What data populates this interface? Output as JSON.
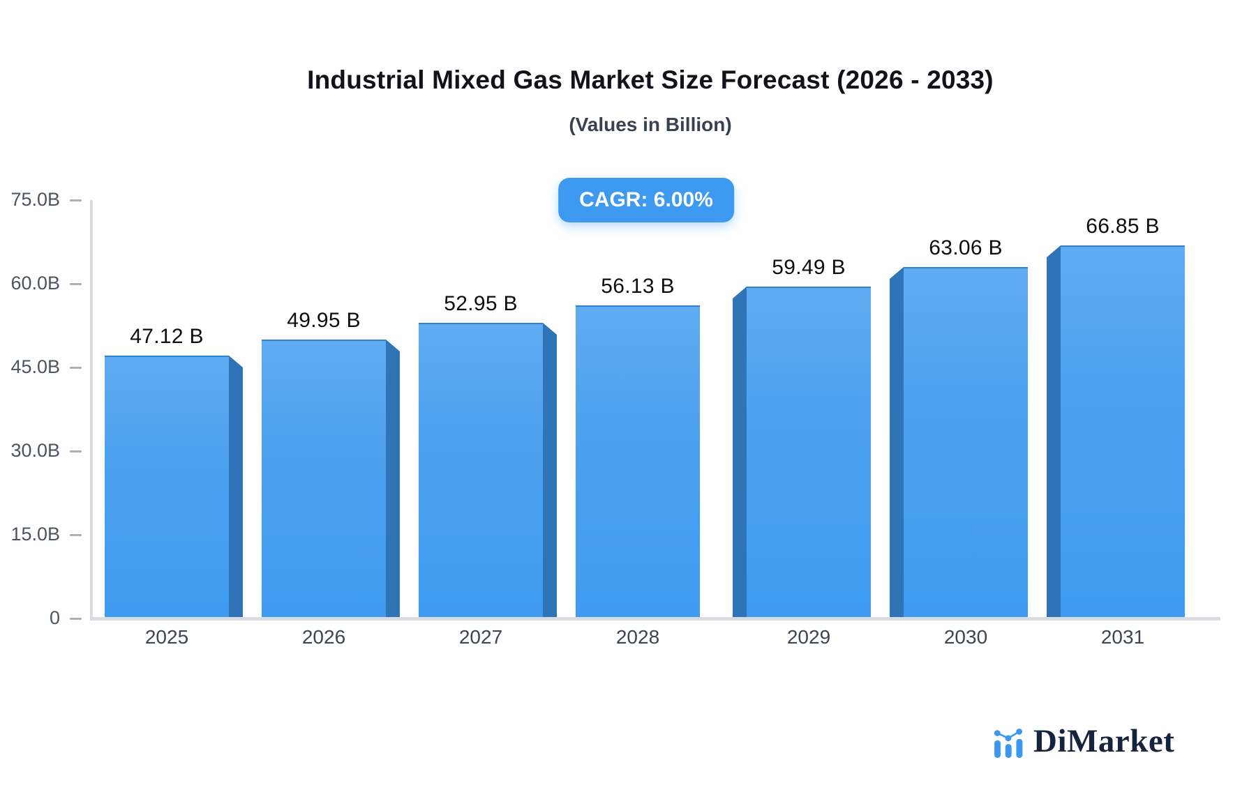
{
  "header": {
    "title": "Industrial Mixed Gas Market Size Forecast (2026 - 2033)",
    "subtitle": "(Values in Billion)",
    "cagr_badge": "CAGR: 6.00%"
  },
  "branding": {
    "name": "DiMarket",
    "icon": "bar-chart-logo-icon"
  },
  "colors": {
    "bar_face_top": "#5fabf2",
    "bar_face_bottom": "#3f9bf0",
    "bar_side": "#2e74b6",
    "badge_bg": "#3e9af0",
    "axis_line": "#d9dce1",
    "tick_text": "#4b545f",
    "logo_text": "#16233e",
    "logo_icon": "#3b97f0"
  },
  "chart_data": {
    "type": "bar",
    "title": "Industrial Mixed Gas Market Size Forecast (2026 - 2033)",
    "subtitle": "(Values in Billion)",
    "annotation": "CAGR: 6.00%",
    "categories": [
      "2025",
      "2026",
      "2027",
      "2028",
      "2029",
      "2030",
      "2031"
    ],
    "values": [
      47.12,
      49.95,
      52.95,
      56.13,
      59.49,
      63.06,
      66.85
    ],
    "value_labels": [
      "47.12 B",
      "49.95 B",
      "52.95 B",
      "56.13 B",
      "59.49 B",
      "63.06 B",
      "66.85 B"
    ],
    "xlabel": "",
    "ylabel": "",
    "ylim": [
      0,
      75
    ],
    "yticks": [
      {
        "value": 75,
        "label": "75.0B"
      },
      {
        "value": 60,
        "label": "60.0B"
      },
      {
        "value": 45,
        "label": "45.0B"
      },
      {
        "value": 30,
        "label": "30.0B"
      },
      {
        "value": 15,
        "label": "15.0B"
      },
      {
        "value": 0,
        "label": "0"
      }
    ],
    "grid": false,
    "legend": false,
    "bar_style": "3d-perspective-blue"
  }
}
